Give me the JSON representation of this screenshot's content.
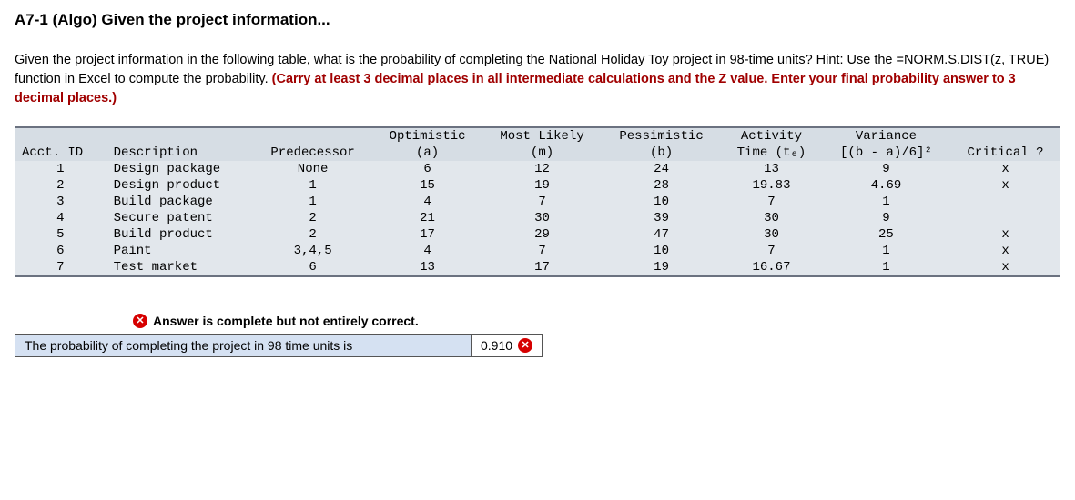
{
  "title": "A7-1 (Algo) Given the project information...",
  "prompt": {
    "line1": "Given the project information in the following table, what is the probability of completing the National Holiday Toy project in 98-time units? Hint: Use the =NORM.S.DIST(z, TRUE) function in Excel to compute the probability. ",
    "bold_clause": "(Carry at least 3 decimal places in all intermediate calculations and the Z value. Enter your final probability answer to 3 decimal places.)"
  },
  "table": {
    "headers_top": {
      "c1": "",
      "c2": "",
      "c3": "",
      "c4": "Optimistic",
      "c5": "Most Likely",
      "c6": "Pessimistic",
      "c7": "Activity",
      "c8": "Variance",
      "c9": ""
    },
    "headers_bot": {
      "c1": "Acct. ID",
      "c2": "Description",
      "c3": "Predecessor",
      "c4": "(a)",
      "c5": "(m)",
      "c6": "(b)",
      "c7": "Time (tₑ)",
      "c8": "[(b - a)/6]²",
      "c9": "Critical ?"
    },
    "rows": [
      {
        "id": "1",
        "desc": "Design package",
        "pred": "None",
        "a": "6",
        "m": "12",
        "b": "24",
        "te": "13",
        "var": "9",
        "crit": "x"
      },
      {
        "id": "2",
        "desc": "Design product",
        "pred": "1",
        "a": "15",
        "m": "19",
        "b": "28",
        "te": "19.83",
        "var": "4.69",
        "crit": "x"
      },
      {
        "id": "3",
        "desc": "Build package",
        "pred": "1",
        "a": "4",
        "m": "7",
        "b": "10",
        "te": "7",
        "var": "1",
        "crit": ""
      },
      {
        "id": "4",
        "desc": "Secure patent",
        "pred": "2",
        "a": "21",
        "m": "30",
        "b": "39",
        "te": "30",
        "var": "9",
        "crit": ""
      },
      {
        "id": "5",
        "desc": "Build product",
        "pred": "2",
        "a": "17",
        "m": "29",
        "b": "47",
        "te": "30",
        "var": "25",
        "crit": "x"
      },
      {
        "id": "6",
        "desc": "Paint",
        "pred": "3,4,5",
        "a": "4",
        "m": "7",
        "b": "10",
        "te": "7",
        "var": "1",
        "crit": "x"
      },
      {
        "id": "7",
        "desc": "Test market",
        "pred": "6",
        "a": "13",
        "m": "17",
        "b": "19",
        "te": "16.67",
        "var": "1",
        "crit": "x"
      }
    ]
  },
  "status": {
    "text": "Answer is complete but not entirely correct."
  },
  "answer": {
    "label": "The probability of completing the project in 98 time units is",
    "value": "0.910"
  }
}
